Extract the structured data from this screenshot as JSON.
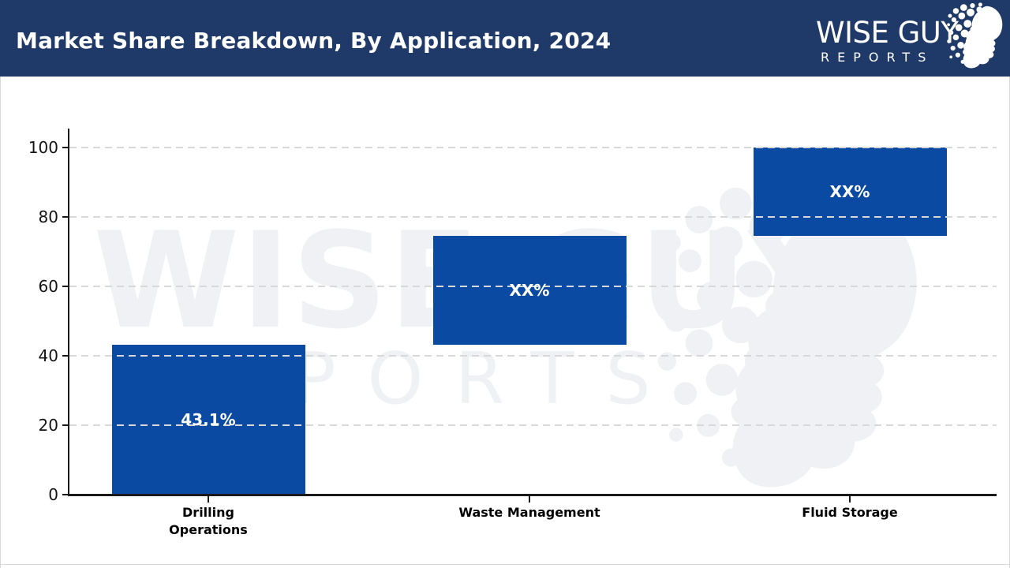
{
  "header": {
    "title": "Market Share Breakdown, By Application, 2024",
    "logo": {
      "wordmark": "WISE GUY",
      "subtext": "REPORTS"
    }
  },
  "watermark": {
    "wordmark": "WISE GUY",
    "subtext": "REPORTS"
  },
  "colors": {
    "header_bg": "#1f3a68",
    "bar": "#0b4aa2",
    "bar_label": "#ffffff",
    "grid": "#d8d8d8",
    "axis": "#1a1a1a",
    "watermark": "#f0f1f4",
    "title_text": "#ffffff"
  },
  "chart_data": {
    "type": "bar",
    "subtype": "stacked-range (waterfall-style segments)",
    "title": "Market Share Breakdown, By Application, 2024",
    "xlabel": "",
    "ylabel": "",
    "ylim": [
      0,
      100
    ],
    "yticks": [
      0,
      20,
      40,
      60,
      80,
      100
    ],
    "grid": {
      "horizontal": true,
      "style": "dashed",
      "on": true
    },
    "legend": null,
    "bar_color": "#0b4aa2",
    "categories": [
      "Drilling Operations",
      "Waste Management",
      "Fluid Storage"
    ],
    "segments": [
      {
        "category": "Drilling Operations",
        "display": "Drilling\nOperations",
        "start": 0,
        "end": 43.1,
        "value": 43.1,
        "label": "43.1%"
      },
      {
        "category": "Waste Management",
        "display": "Waste Management",
        "start": 43.1,
        "end": 74.6,
        "value": 31.5,
        "label": "XX%"
      },
      {
        "category": "Fluid Storage",
        "display": "Fluid Storage",
        "start": 74.5,
        "end": 100,
        "value": 25.5,
        "label": "XX%"
      }
    ]
  }
}
